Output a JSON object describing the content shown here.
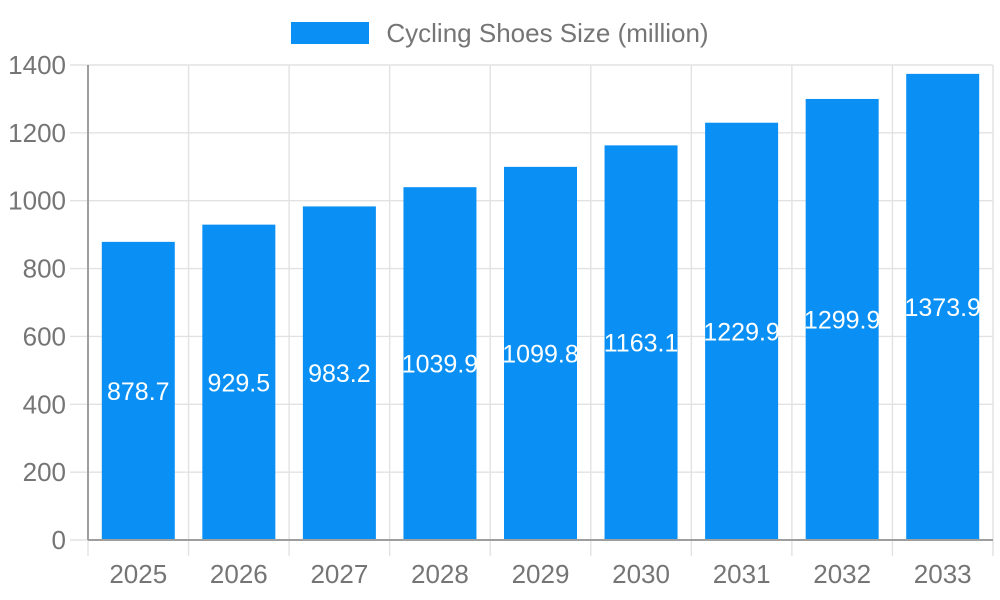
{
  "chart_data": {
    "type": "bar",
    "title": "Cycling Shoes Size (million)",
    "categories": [
      "2025",
      "2026",
      "2027",
      "2028",
      "2029",
      "2030",
      "2031",
      "2032",
      "2033"
    ],
    "values": [
      878.7,
      929.5,
      983.2,
      1039.9,
      1099.8,
      1163.1,
      1229.9,
      1299.9,
      1373.9
    ],
    "value_labels": [
      "878.7",
      "929.5",
      "983.2",
      "1039.9",
      "1099.8",
      "1163.1",
      "1229.9",
      "1299.9",
      "1373.9"
    ],
    "xlabel": "",
    "ylabel": "",
    "ylim": [
      0,
      1400
    ],
    "yticks": [
      0,
      200,
      400,
      600,
      800,
      1000,
      1200,
      1400
    ],
    "grid": true,
    "legend_position": "top",
    "value_label_position": "inside-middle"
  },
  "colors": {
    "bar": "#0a90f4",
    "grid": "#e2e2e2",
    "axis": "#9e9e9e",
    "text": "#757575",
    "value_label": "#ffffff",
    "background": "#ffffff"
  }
}
